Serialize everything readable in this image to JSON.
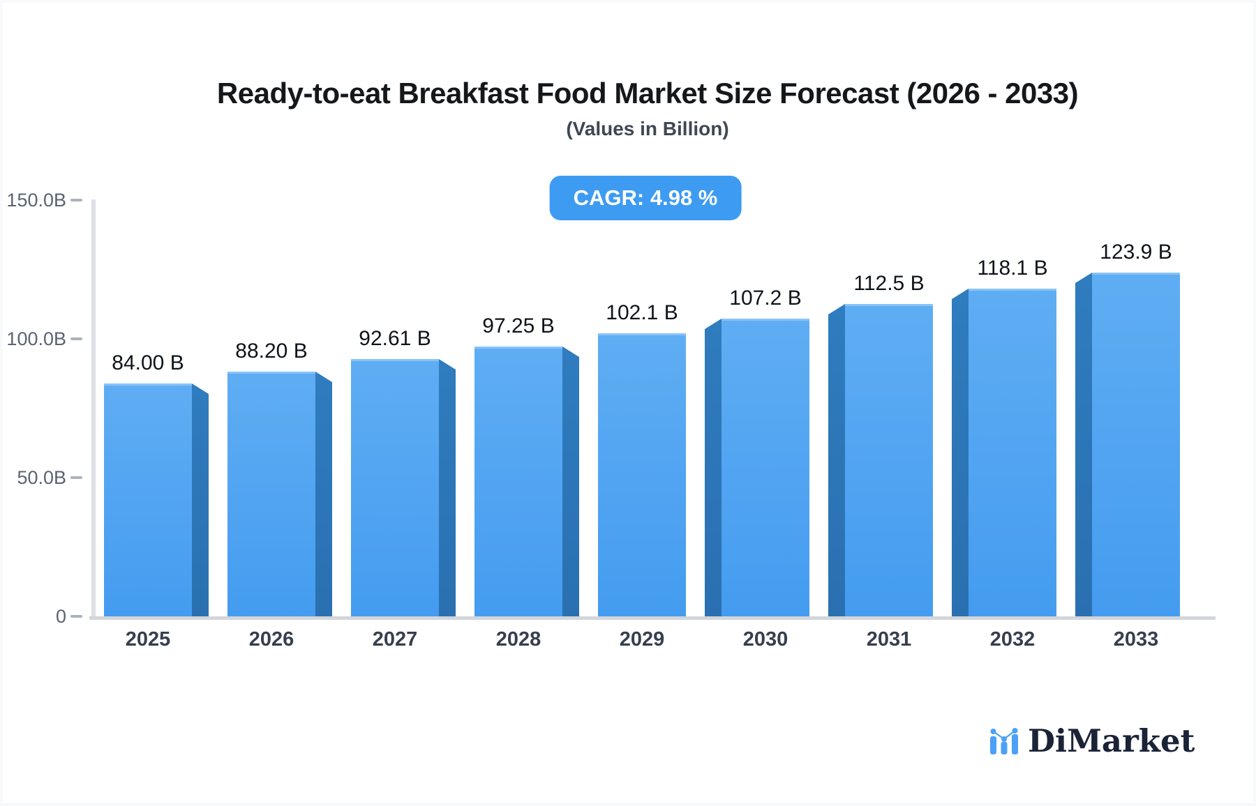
{
  "header": {
    "title": "Ready-to-eat Breakfast Food Market Size Forecast (2026 - 2033)",
    "subtitle": "(Values in Billion)",
    "cagr_label": "CAGR: 4.98 %"
  },
  "chart_data": {
    "type": "bar",
    "title": "Ready-to-eat Breakfast Food Market Size Forecast (2026 - 2033)",
    "subtitle": "(Values in Billion)",
    "cagr_percent": 4.98,
    "categories": [
      "2025",
      "2026",
      "2027",
      "2028",
      "2029",
      "2030",
      "2031",
      "2032",
      "2033"
    ],
    "values": [
      84.0,
      88.2,
      92.61,
      97.25,
      102.1,
      107.2,
      112.5,
      118.1,
      123.9
    ],
    "value_labels": [
      "84.00 B",
      "88.20 B",
      "92.61 B",
      "97.25 B",
      "102.1 B",
      "107.2 B",
      "112.5 B",
      "118.1 B",
      "123.9 B"
    ],
    "y_ticks": [
      {
        "value": 150,
        "label": "150.0B"
      },
      {
        "value": 100,
        "label": "100.0B"
      },
      {
        "value": 50,
        "label": "50.0B"
      },
      {
        "value": 0,
        "label": "0"
      }
    ],
    "ylim": [
      0,
      150
    ],
    "xlabel": "",
    "ylabel": "",
    "grid": false,
    "legend": null,
    "bar_style": "3d-extruded",
    "bar_colors": {
      "face_top": "#5FADF3",
      "face_bottom": "#449CF0",
      "side": "#2C74B6",
      "top_highlight": "#87C3F8"
    }
  },
  "branding": {
    "brand_name": "DiMarket",
    "logo_icon": "bar-chart-dots-logo-icon"
  },
  "colors": {
    "badge_bg": "#3D9BF2",
    "badge_text": "#FFFFFF",
    "title_text": "#15181B",
    "subtitle_text": "#3E4753",
    "axis_line": "#DDE0E4",
    "baseline": "#D2D5DA",
    "y_tick_text": "#5A6372",
    "x_tick_text": "#363F4E",
    "value_label_text": "#0F141A",
    "brand_text": "#1A2337",
    "frame_border": "#F8F9FB",
    "background": "#FFFFFF"
  }
}
